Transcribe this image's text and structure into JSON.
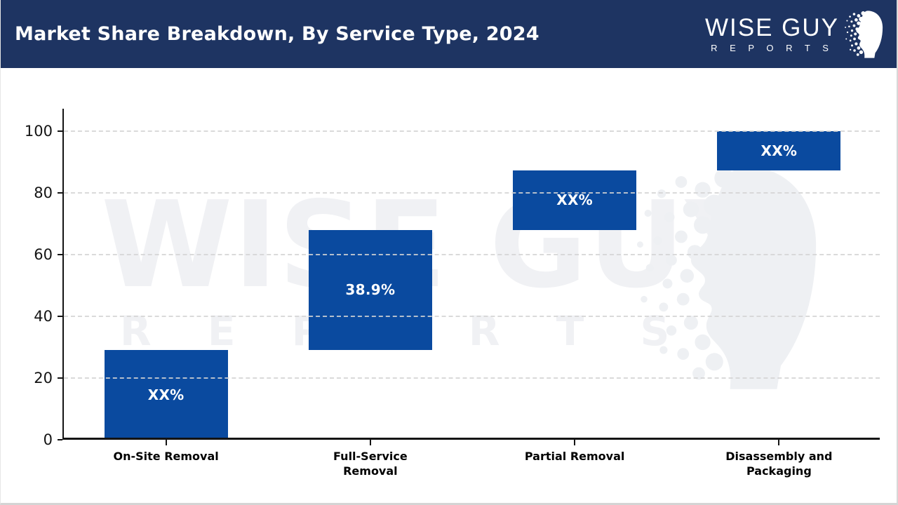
{
  "header": {
    "title": "Market Share Breakdown, By Service Type, 2024",
    "background_color": "#1e3462",
    "logo": {
      "line1": "WISE GUY",
      "line2": "R E P O R T S"
    }
  },
  "watermark": {
    "line1": "WISE GUY",
    "line2": "R E P O R T S"
  },
  "chart_data": {
    "type": "bar",
    "variant": "waterfall",
    "title": "Market Share Breakdown, By Service Type, 2024",
    "categories": [
      "On-Site Removal",
      "Full-Service Removal",
      "Partial Removal",
      "Disassembly and Packaging"
    ],
    "category_lines": [
      [
        "On-Site Removal"
      ],
      [
        "Full-Service",
        "Removal"
      ],
      [
        "Partial Removal"
      ],
      [
        "Disassembly and",
        "Packaging"
      ]
    ],
    "segments": [
      {
        "category": "On-Site Removal",
        "start": 0,
        "end": 29.1,
        "label": "XX%"
      },
      {
        "category": "Full-Service Removal",
        "start": 29.1,
        "end": 68.0,
        "label": "38.9%",
        "value": 38.9
      },
      {
        "category": "Partial Removal",
        "start": 68.0,
        "end": 87.3,
        "label": "XX%"
      },
      {
        "category": "Disassembly and Packaging",
        "start": 87.3,
        "end": 100.0,
        "label": "XX%"
      }
    ],
    "xlabel": "",
    "ylabel": "",
    "ylim": [
      0,
      100
    ],
    "yticks": [
      0,
      20,
      40,
      60,
      80,
      100
    ],
    "grid": "horizontal-dashed",
    "legend": "none",
    "bar_color": "#0a4a9f",
    "label_color": "#ffffff",
    "gridline_color": "#d4d4d4",
    "axis_color": "#141414"
  }
}
